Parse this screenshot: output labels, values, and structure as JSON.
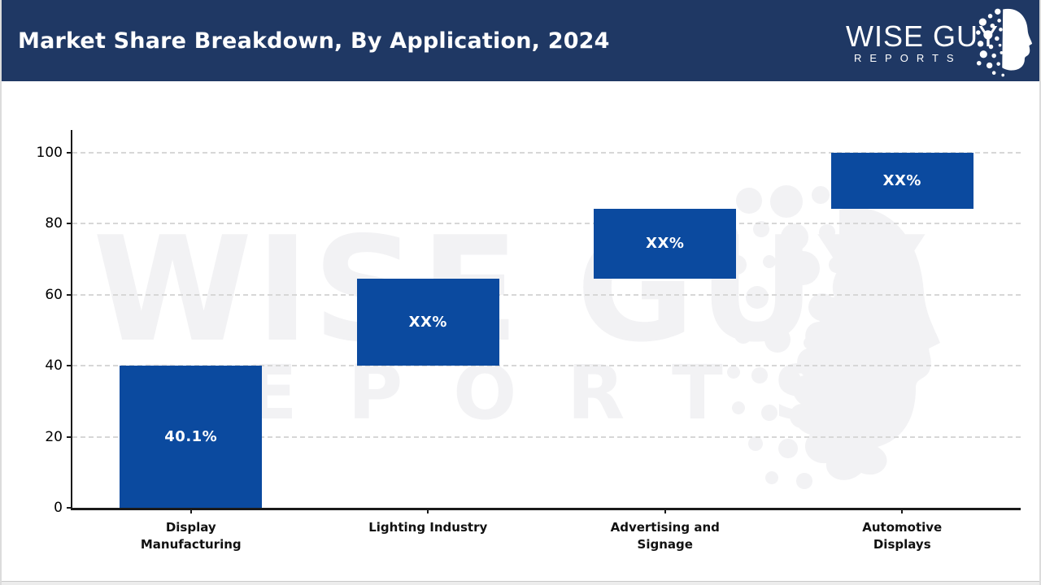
{
  "header": {
    "title": "Market Share Breakdown, By Application, 2024",
    "bg_color": "#1f3864",
    "logo": {
      "line1": "WISE GUY",
      "line2": "REPORTS"
    }
  },
  "watermark": {
    "line1": "WISE GUY",
    "line2": "REPORTS"
  },
  "chart_data": {
    "type": "bar",
    "subtype": "waterfall",
    "title": "Market Share Breakdown, By Application, 2024",
    "xlabel": "",
    "ylabel": "",
    "categories": [
      "Display\nManufacturing",
      "Lighting Industry",
      "Advertising and\nSignage",
      "Automotive\nDisplays"
    ],
    "segments": [
      {
        "category": "Display Manufacturing",
        "start": 0,
        "end": 40.1,
        "label": "40.1%"
      },
      {
        "category": "Lighting Industry",
        "start": 40.1,
        "end": 64.5,
        "label": "XX%"
      },
      {
        "category": "Advertising and Signage",
        "start": 64.5,
        "end": 84.2,
        "label": "XX%"
      },
      {
        "category": "Automotive Displays",
        "start": 84.2,
        "end": 100,
        "label": "XX%"
      }
    ],
    "yticks": [
      0,
      20,
      40,
      60,
      80,
      100
    ],
    "ylim": [
      0,
      106
    ],
    "grid": "horizontal dashed, on",
    "legend": "none",
    "bar_color": "#0b4a9f",
    "bar_label_color": "#ffffff",
    "grid_color": "#d7d7d7",
    "axis_color": "#1a1a1a"
  }
}
